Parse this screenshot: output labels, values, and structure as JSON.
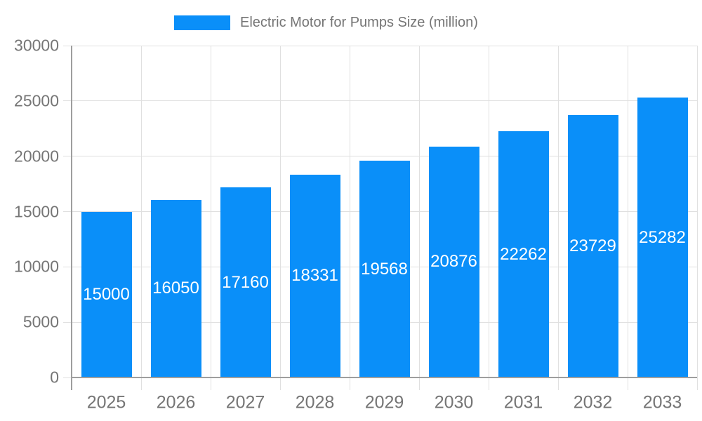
{
  "legend": {
    "label": "Electric Motor for Pumps Size (million)"
  },
  "colors": {
    "bar": "#0a8ff9",
    "gridline": "#e0e0e0",
    "axis": "#9e9e9e",
    "tick_text": "#757575",
    "value_label": "#ffffff",
    "background": "#ffffff"
  },
  "chart_data": {
    "type": "bar",
    "title": "Electric Motor for Pumps Size (million)",
    "series_name": "Electric Motor for Pumps Size (million)",
    "categories": [
      "2025",
      "2026",
      "2027",
      "2028",
      "2029",
      "2030",
      "2031",
      "2032",
      "2033"
    ],
    "values": [
      15000,
      16050,
      17160,
      18331,
      19568,
      20876,
      22262,
      23729,
      25282
    ],
    "value_labels": [
      "15000",
      "16050",
      "17160",
      "18331",
      "19568",
      "20876",
      "22262",
      "23729",
      "25282"
    ],
    "xlabel": "",
    "ylabel": "",
    "ylim": [
      0,
      30000
    ],
    "ytick_step": 5000,
    "yticks": [
      0,
      5000,
      10000,
      15000,
      20000,
      25000,
      30000
    ],
    "grid": true,
    "legend_position": "top",
    "value_label_position": "inside-center"
  }
}
